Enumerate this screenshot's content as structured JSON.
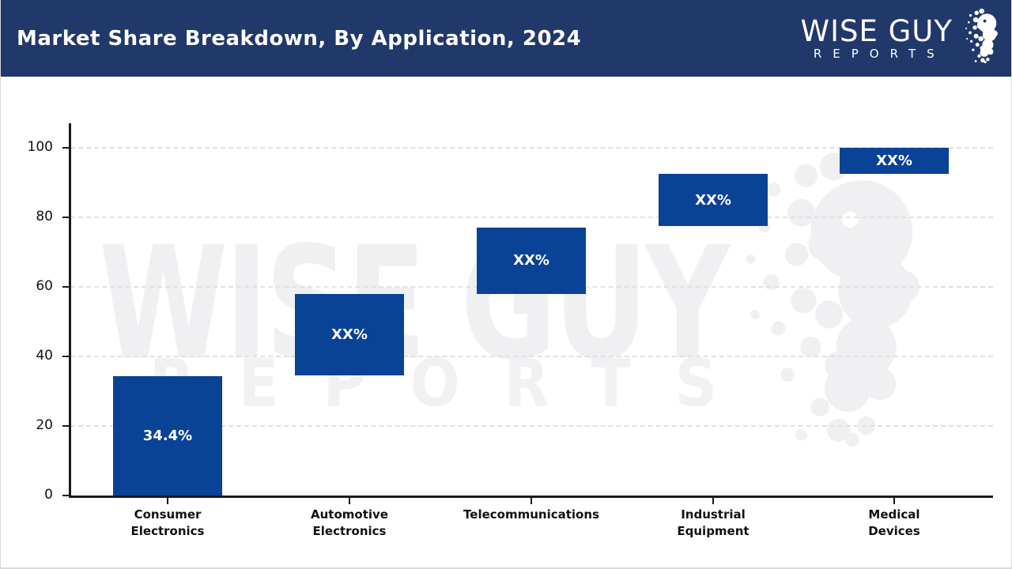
{
  "header": {
    "title": "Market Share Breakdown, By Application, 2024",
    "logo": {
      "name": "WISE GUY",
      "sub": "REPORTS"
    }
  },
  "watermark": {
    "line1": "WISE GUY",
    "line2": "REPORTS"
  },
  "colors": {
    "header_bg": "#21386b",
    "bar": "#0a4296",
    "grid": "#e1e1e3",
    "axis": "#1a1a1a",
    "watermark": "#f0f0f2",
    "bar_label": "#ffffff"
  },
  "chart_data": {
    "type": "bar",
    "variant": "waterfall",
    "title": "Market Share Breakdown, By Application, 2024",
    "xlabel": "",
    "ylabel": "",
    "categories": [
      [
        "Consumer",
        "Electronics"
      ],
      [
        "Automotive",
        "Electronics"
      ],
      [
        "Telecommunications"
      ],
      [
        "Industrial",
        "Equipment"
      ],
      [
        "Medical",
        "Devices"
      ]
    ],
    "segments": [
      {
        "category": "Consumer Electronics",
        "start": 0,
        "end": 34.4,
        "label": "34.4%"
      },
      {
        "category": "Automotive Electronics",
        "start": 34.5,
        "end": 58,
        "label": "XX%"
      },
      {
        "category": "Telecommunications",
        "start": 58,
        "end": 77,
        "label": "XX%"
      },
      {
        "category": "Industrial Equipment",
        "start": 77.5,
        "end": 92.5,
        "label": "XX%"
      },
      {
        "category": "Medical Devices",
        "start": 92.5,
        "end": 100,
        "label": "XX%"
      }
    ],
    "yticks": [
      0,
      20,
      40,
      60,
      80,
      100
    ],
    "ylim": [
      0,
      107
    ],
    "grid": "dashed-horizontal",
    "legend": "none"
  }
}
